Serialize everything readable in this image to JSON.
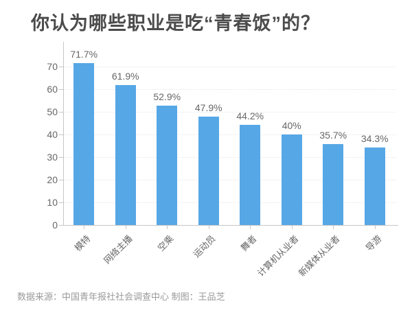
{
  "source_note": "数据来源：中国青年报社社会调查中心 制图：王品芝",
  "colors": {
    "bar": "#56a7e6",
    "title_text": "#4b4b4b",
    "label_text": "#666666",
    "axis_line": "#c6c6c6",
    "gridline": "#e6e6e6",
    "source_text": "#999999",
    "background": "#ffffff"
  },
  "chart_data": {
    "type": "bar",
    "title": "你认为哪些职业是吃“青春饭”的？",
    "categories": [
      "模特",
      "网络主播",
      "空乘",
      "运动员",
      "舞者",
      "计算机从业者",
      "新媒体从业者",
      "导游"
    ],
    "values": [
      71.7,
      61.9,
      52.9,
      47.9,
      44.2,
      40,
      35.7,
      34.3
    ],
    "value_labels": [
      "71.7%",
      "61.9%",
      "52.9%",
      "47.9%",
      "44.2%",
      "40%",
      "35.7%",
      "34.3%"
    ],
    "xlabel": "",
    "ylabel": "",
    "ylim": [
      0,
      81
    ],
    "yticks": [
      0,
      10,
      20,
      30,
      40,
      50,
      60,
      70
    ],
    "grid": true,
    "grid_style": "dotted",
    "legend": false,
    "x_label_rotation_deg": 45,
    "unit": "%"
  }
}
